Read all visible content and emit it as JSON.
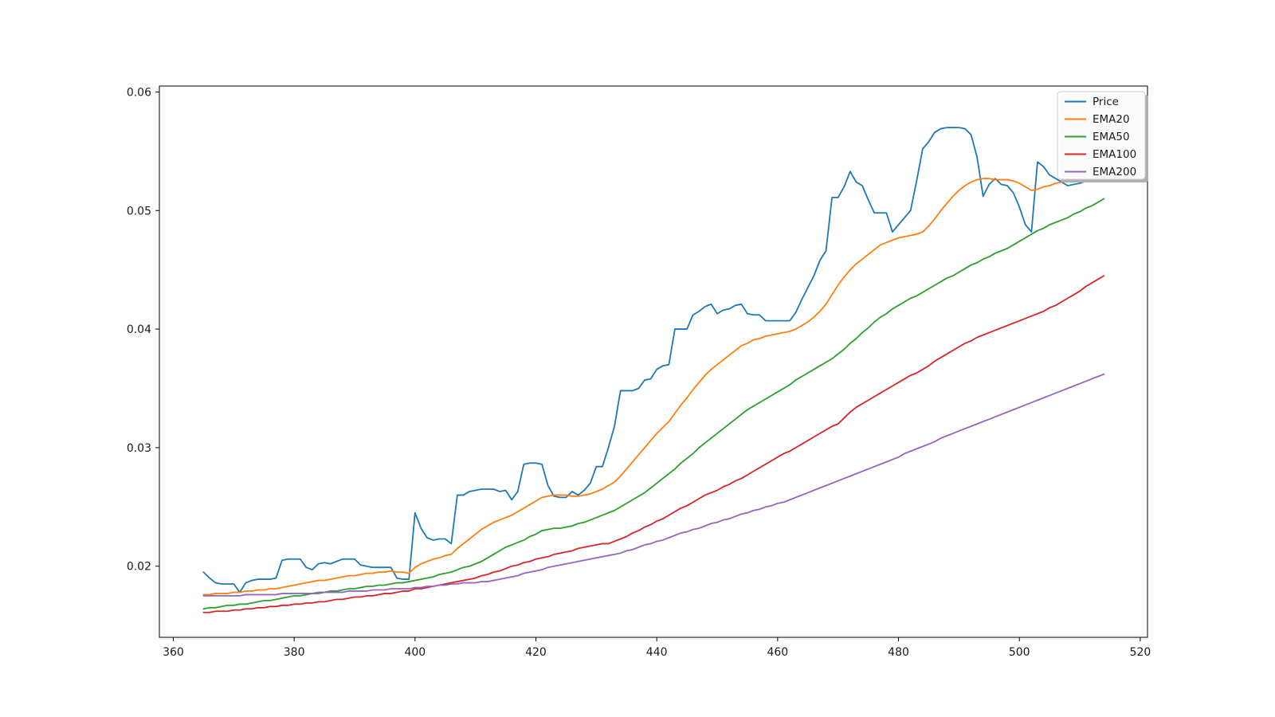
{
  "figure": {
    "background": "#ffffff",
    "spine_color": "#000000",
    "tick_color": "#000000"
  },
  "legend": {
    "position": "upper right",
    "border_color": "#cccccc",
    "shadow_color": "#b0b0b0",
    "background": "#ffffff"
  },
  "chart_data": {
    "type": "line",
    "title": "",
    "xlabel": "",
    "ylabel": "",
    "grid": false,
    "legend_position": "upper right",
    "xlim": [
      357.7,
      521.2
    ],
    "ylim": [
      0.014,
      0.0605
    ],
    "xticks": [
      360,
      380,
      400,
      420,
      440,
      460,
      480,
      500,
      520
    ],
    "xtick_labels": [
      "360",
      "380",
      "400",
      "420",
      "440",
      "460",
      "480",
      "500",
      "520"
    ],
    "yticks": [
      0.02,
      0.03,
      0.04,
      0.05,
      0.06
    ],
    "ytick_labels": [
      "0.02",
      "0.03",
      "0.04",
      "0.05",
      "0.06"
    ],
    "x_start": 365,
    "x_step": 1,
    "series": [
      {
        "name": "Price",
        "color": "#1f77b4",
        "values": [
          0.0195,
          0.019,
          0.0186,
          0.0185,
          0.0185,
          0.0185,
          0.0178,
          0.0186,
          0.0188,
          0.0189,
          0.0189,
          0.0189,
          0.019,
          0.0205,
          0.0206,
          0.0206,
          0.0206,
          0.0199,
          0.0197,
          0.0202,
          0.0203,
          0.0202,
          0.0204,
          0.0206,
          0.0206,
          0.0206,
          0.0201,
          0.02,
          0.0199,
          0.0199,
          0.0199,
          0.0199,
          0.019,
          0.0189,
          0.0189,
          0.0245,
          0.0232,
          0.0224,
          0.0222,
          0.0223,
          0.0223,
          0.0219,
          0.026,
          0.026,
          0.0263,
          0.0264,
          0.0265,
          0.0265,
          0.0265,
          0.0263,
          0.0264,
          0.0256,
          0.0263,
          0.0286,
          0.0287,
          0.0287,
          0.0286,
          0.0268,
          0.0259,
          0.0258,
          0.0258,
          0.0263,
          0.026,
          0.0264,
          0.027,
          0.0284,
          0.0284,
          0.03,
          0.0318,
          0.0348,
          0.0348,
          0.0348,
          0.035,
          0.0357,
          0.0358,
          0.0366,
          0.0369,
          0.037,
          0.04,
          0.04,
          0.04,
          0.0412,
          0.0415,
          0.0419,
          0.0421,
          0.0413,
          0.0416,
          0.0417,
          0.042,
          0.0421,
          0.0413,
          0.0412,
          0.0412,
          0.0407,
          0.0407,
          0.0407,
          0.0407,
          0.0407,
          0.0414,
          0.0425,
          0.0435,
          0.0445,
          0.0458,
          0.0466,
          0.0511,
          0.0511,
          0.052,
          0.0533,
          0.0524,
          0.0521,
          0.0509,
          0.0498,
          0.0498,
          0.0498,
          0.0482,
          0.0488,
          0.0494,
          0.05,
          0.0525,
          0.0552,
          0.0558,
          0.0566,
          0.0569,
          0.057,
          0.057,
          0.057,
          0.0569,
          0.0564,
          0.0545,
          0.0512,
          0.0522,
          0.0527,
          0.0522,
          0.0521,
          0.0515,
          0.0503,
          0.0488,
          0.0482,
          0.0541,
          0.0537,
          0.053,
          0.0527,
          0.0524,
          0.0521,
          0.0522,
          0.0523,
          0.0525,
          0.0526,
          0.0526,
          0.0527
        ]
      },
      {
        "name": "EMA20",
        "color": "#ff7f0e",
        "values": [
          0.0176,
          0.0176,
          0.0177,
          0.0177,
          0.0177,
          0.0178,
          0.0178,
          0.0179,
          0.0179,
          0.018,
          0.018,
          0.0181,
          0.0181,
          0.0182,
          0.0183,
          0.0184,
          0.0185,
          0.0186,
          0.0187,
          0.0188,
          0.0188,
          0.0189,
          0.019,
          0.0191,
          0.0192,
          0.0192,
          0.0193,
          0.0194,
          0.0194,
          0.0195,
          0.0195,
          0.0196,
          0.0195,
          0.0195,
          0.0194,
          0.0199,
          0.0202,
          0.0204,
          0.0206,
          0.0207,
          0.0209,
          0.021,
          0.0215,
          0.0219,
          0.0223,
          0.0227,
          0.0231,
          0.0234,
          0.0237,
          0.0239,
          0.0241,
          0.0243,
          0.0246,
          0.0249,
          0.0252,
          0.0255,
          0.0258,
          0.0259,
          0.026,
          0.026,
          0.026,
          0.0259,
          0.0259,
          0.026,
          0.0261,
          0.0263,
          0.0265,
          0.0268,
          0.0271,
          0.0276,
          0.0282,
          0.0288,
          0.0294,
          0.03,
          0.0306,
          0.0312,
          0.0317,
          0.0322,
          0.0329,
          0.0336,
          0.0342,
          0.0349,
          0.0355,
          0.0361,
          0.0366,
          0.037,
          0.0374,
          0.0378,
          0.0382,
          0.0386,
          0.0388,
          0.0391,
          0.0392,
          0.0394,
          0.0395,
          0.0396,
          0.0397,
          0.0398,
          0.04,
          0.0403,
          0.0406,
          0.041,
          0.0415,
          0.0421,
          0.0429,
          0.0437,
          0.0444,
          0.045,
          0.0455,
          0.0459,
          0.0463,
          0.0467,
          0.0471,
          0.0473,
          0.0475,
          0.0477,
          0.0478,
          0.0479,
          0.048,
          0.0482,
          0.0487,
          0.0493,
          0.05,
          0.0506,
          0.0512,
          0.0517,
          0.0521,
          0.0524,
          0.0526,
          0.0527,
          0.0527,
          0.0526,
          0.0526,
          0.0526,
          0.0525,
          0.0523,
          0.052,
          0.0517,
          0.0518,
          0.052,
          0.0521,
          0.0523,
          0.0524,
          0.0525,
          0.0526,
          0.0528,
          0.0529,
          0.053,
          0.0531,
          0.0532
        ]
      },
      {
        "name": "EMA50",
        "color": "#2ca02c",
        "values": [
          0.0164,
          0.0165,
          0.0165,
          0.0166,
          0.0167,
          0.0167,
          0.0168,
          0.0168,
          0.0169,
          0.017,
          0.0171,
          0.0171,
          0.0172,
          0.0173,
          0.0174,
          0.0175,
          0.0175,
          0.0176,
          0.0177,
          0.0177,
          0.0178,
          0.0179,
          0.0179,
          0.018,
          0.0181,
          0.0181,
          0.0182,
          0.0183,
          0.0183,
          0.0184,
          0.0184,
          0.0185,
          0.0186,
          0.0186,
          0.0187,
          0.0188,
          0.0189,
          0.019,
          0.0191,
          0.0193,
          0.0194,
          0.0195,
          0.0197,
          0.0199,
          0.02,
          0.0202,
          0.0204,
          0.0207,
          0.021,
          0.0213,
          0.0216,
          0.0218,
          0.022,
          0.0222,
          0.0225,
          0.0227,
          0.023,
          0.0231,
          0.0232,
          0.0232,
          0.0233,
          0.0234,
          0.0236,
          0.0237,
          0.0239,
          0.0241,
          0.0243,
          0.0245,
          0.0247,
          0.025,
          0.0253,
          0.0256,
          0.0259,
          0.0262,
          0.0266,
          0.027,
          0.0274,
          0.0278,
          0.0282,
          0.0287,
          0.0291,
          0.0295,
          0.03,
          0.0304,
          0.0308,
          0.0312,
          0.0316,
          0.032,
          0.0324,
          0.0328,
          0.0332,
          0.0335,
          0.0338,
          0.0341,
          0.0344,
          0.0347,
          0.035,
          0.0353,
          0.0357,
          0.036,
          0.0363,
          0.0366,
          0.0369,
          0.0372,
          0.0375,
          0.0379,
          0.0383,
          0.0388,
          0.0392,
          0.0397,
          0.0401,
          0.0406,
          0.041,
          0.0413,
          0.0417,
          0.042,
          0.0423,
          0.0426,
          0.0428,
          0.0431,
          0.0434,
          0.0437,
          0.044,
          0.0443,
          0.0445,
          0.0448,
          0.0451,
          0.0454,
          0.0456,
          0.0459,
          0.0461,
          0.0464,
          0.0466,
          0.0468,
          0.0471,
          0.0474,
          0.0477,
          0.048,
          0.0483,
          0.0485,
          0.0488,
          0.049,
          0.0492,
          0.0494,
          0.0497,
          0.0499,
          0.0502,
          0.0504,
          0.0507,
          0.051
        ]
      },
      {
        "name": "EMA100",
        "color": "#d62728",
        "values": [
          0.0161,
          0.0161,
          0.0162,
          0.0162,
          0.0162,
          0.0163,
          0.0163,
          0.0164,
          0.0164,
          0.0165,
          0.0165,
          0.0166,
          0.0166,
          0.0167,
          0.0167,
          0.0168,
          0.0168,
          0.0169,
          0.0169,
          0.017,
          0.017,
          0.0171,
          0.0172,
          0.0172,
          0.0173,
          0.0174,
          0.0174,
          0.0175,
          0.0175,
          0.0176,
          0.0177,
          0.0177,
          0.0178,
          0.0179,
          0.0179,
          0.0181,
          0.0181,
          0.0182,
          0.0183,
          0.0184,
          0.0185,
          0.0186,
          0.0187,
          0.0188,
          0.0189,
          0.019,
          0.0192,
          0.0193,
          0.0195,
          0.0196,
          0.0198,
          0.02,
          0.0201,
          0.0203,
          0.0204,
          0.0206,
          0.0207,
          0.0208,
          0.021,
          0.0211,
          0.0212,
          0.0213,
          0.0215,
          0.0216,
          0.0217,
          0.0218,
          0.0219,
          0.0219,
          0.0221,
          0.0223,
          0.0225,
          0.0228,
          0.023,
          0.0233,
          0.0235,
          0.0238,
          0.024,
          0.0243,
          0.0246,
          0.0249,
          0.0251,
          0.0254,
          0.0257,
          0.026,
          0.0262,
          0.0264,
          0.0267,
          0.0269,
          0.0272,
          0.0274,
          0.0277,
          0.028,
          0.0283,
          0.0286,
          0.0289,
          0.0292,
          0.0295,
          0.0297,
          0.03,
          0.0303,
          0.0306,
          0.0309,
          0.0312,
          0.0315,
          0.0318,
          0.032,
          0.0325,
          0.033,
          0.0334,
          0.0337,
          0.034,
          0.0343,
          0.0346,
          0.0349,
          0.0352,
          0.0355,
          0.0358,
          0.0361,
          0.0363,
          0.0366,
          0.0369,
          0.0373,
          0.0376,
          0.0379,
          0.0382,
          0.0385,
          0.0388,
          0.039,
          0.0393,
          0.0395,
          0.0397,
          0.0399,
          0.0401,
          0.0403,
          0.0405,
          0.0407,
          0.0409,
          0.0411,
          0.0413,
          0.0415,
          0.0418,
          0.042,
          0.0423,
          0.0426,
          0.0429,
          0.0432,
          0.0436,
          0.0439,
          0.0442,
          0.0445
        ]
      },
      {
        "name": "EMA200",
        "color": "#9467bd",
        "values": [
          0.0175,
          0.0175,
          0.0175,
          0.0175,
          0.0175,
          0.0175,
          0.0175,
          0.0176,
          0.0176,
          0.0176,
          0.0176,
          0.0176,
          0.0176,
          0.0177,
          0.0177,
          0.0177,
          0.0177,
          0.0177,
          0.0177,
          0.0178,
          0.0178,
          0.0178,
          0.0178,
          0.0178,
          0.0179,
          0.0179,
          0.0179,
          0.0179,
          0.018,
          0.018,
          0.018,
          0.0181,
          0.0181,
          0.0181,
          0.0181,
          0.0182,
          0.0182,
          0.0183,
          0.0183,
          0.0184,
          0.0184,
          0.0185,
          0.0185,
          0.0186,
          0.0186,
          0.0186,
          0.0187,
          0.0187,
          0.0188,
          0.0189,
          0.019,
          0.0191,
          0.0192,
          0.0194,
          0.0195,
          0.0196,
          0.0197,
          0.0199,
          0.02,
          0.0201,
          0.0202,
          0.0203,
          0.0204,
          0.0205,
          0.0206,
          0.0207,
          0.0208,
          0.0209,
          0.021,
          0.0211,
          0.0213,
          0.0214,
          0.0216,
          0.0218,
          0.0219,
          0.0221,
          0.0222,
          0.0224,
          0.0226,
          0.0228,
          0.0229,
          0.0231,
          0.0232,
          0.0234,
          0.0236,
          0.0237,
          0.0239,
          0.024,
          0.0242,
          0.0244,
          0.0245,
          0.0247,
          0.0248,
          0.025,
          0.0251,
          0.0253,
          0.0254,
          0.0256,
          0.0258,
          0.026,
          0.0262,
          0.0264,
          0.0266,
          0.0268,
          0.027,
          0.0272,
          0.0274,
          0.0276,
          0.0278,
          0.028,
          0.0282,
          0.0284,
          0.0286,
          0.0288,
          0.029,
          0.0292,
          0.0295,
          0.0297,
          0.0299,
          0.0301,
          0.0303,
          0.0305,
          0.0308,
          0.031,
          0.0312,
          0.0314,
          0.0316,
          0.0318,
          0.032,
          0.0322,
          0.0324,
          0.0326,
          0.0328,
          0.033,
          0.0332,
          0.0334,
          0.0336,
          0.0338,
          0.034,
          0.0342,
          0.0344,
          0.0346,
          0.0348,
          0.035,
          0.0352,
          0.0354,
          0.0356,
          0.0358,
          0.036,
          0.0362
        ]
      }
    ]
  }
}
